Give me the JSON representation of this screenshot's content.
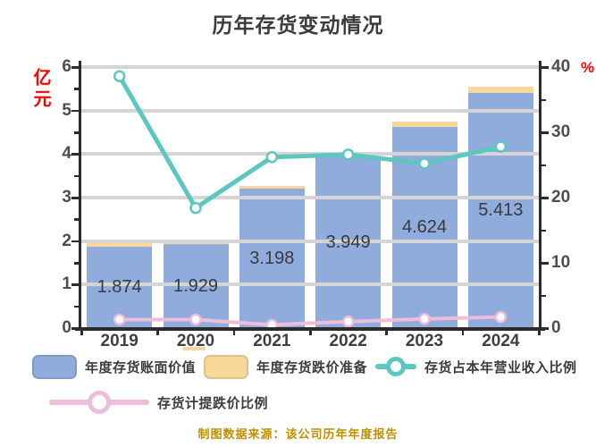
{
  "title": "历年存货变动情况",
  "footer": "制图数据来源：该公司历年年度报告",
  "left_axis": {
    "unit": "亿元",
    "ticks": [
      "6",
      "5",
      "4",
      "3",
      "2",
      "1",
      "0"
    ]
  },
  "right_axis": {
    "unit": "%",
    "ticks": [
      "40",
      "30",
      "20",
      "10",
      "0"
    ]
  },
  "legend": [
    {
      "label": "年度存货账面价值",
      "type": "bar",
      "color": "#8facdc"
    },
    {
      "label": "年度存货跌价准备",
      "type": "bar",
      "color": "#f8d79b"
    },
    {
      "label": "存货占本年营业收入比例",
      "type": "line",
      "color": "#5cc7bf"
    },
    {
      "label": "存货计提跌价比例",
      "type": "line",
      "color": "#edbdda"
    }
  ],
  "chart_data": {
    "type": "bar+line",
    "title": "历年存货变动情况",
    "categories": [
      "2019",
      "2020",
      "2021",
      "2022",
      "2023",
      "2024"
    ],
    "left_ylim": [
      0,
      6
    ],
    "right_ylim": [
      0,
      40
    ],
    "grid": true,
    "legend_position": "bottom",
    "series": [
      {
        "name": "年度存货账面价值",
        "type": "bar",
        "axis": "left",
        "color": "#8facdc",
        "values": [
          1.874,
          1.929,
          3.198,
          3.949,
          4.624,
          5.413
        ],
        "labels": [
          "1.874",
          "1.929",
          "3.198",
          "3.949",
          "4.624",
          "5.413"
        ]
      },
      {
        "name": "年度存货跌价准备",
        "type": "bar-cap",
        "axis": "left",
        "color": "#f8d79b",
        "values": [
          0.1,
          0.1,
          0.07,
          0.09,
          0.12,
          0.13
        ]
      },
      {
        "name": "存货占本年营业收入比例",
        "type": "line",
        "axis": "right",
        "color": "#5cc7bf",
        "values": [
          38.6,
          18.4,
          26.2,
          26.6,
          25.2,
          27.8
        ]
      },
      {
        "name": "存货计提跌价比例",
        "type": "line",
        "axis": "right",
        "color": "#edbdda",
        "values": [
          1.3,
          1.3,
          0.5,
          1.0,
          1.4,
          1.7
        ]
      }
    ]
  }
}
